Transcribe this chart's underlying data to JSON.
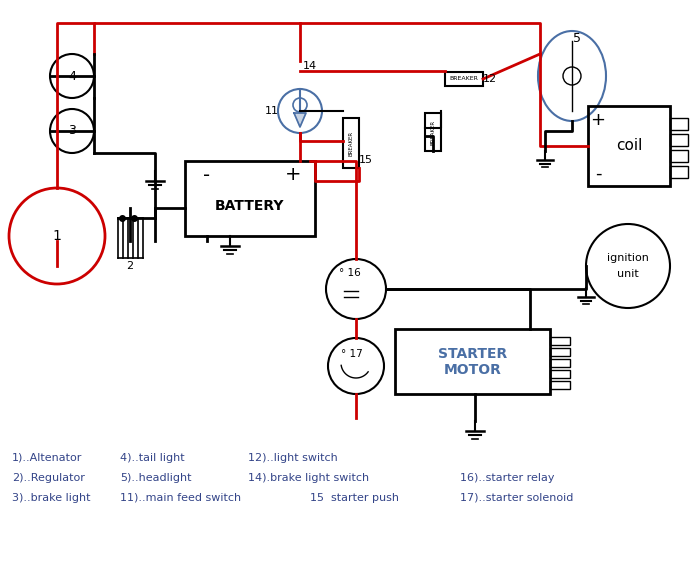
{
  "bg_color": "#ffffff",
  "red": "#cc0000",
  "black": "#000000",
  "blue": "#4a6fa5",
  "dark_blue": "#334488",
  "legend_lines": [
    [
      "1)..Altenator",
      "4)..tail light",
      "12)..light switch",
      "",
      ""
    ],
    [
      "2)..Regulator",
      "5)..headlight",
      "14).brake light switch",
      "16)..starter relay",
      ""
    ],
    [
      "3)..brake light",
      "11)..main feed switch",
      "15  starter push",
      "17)..starter solenoid",
      ""
    ]
  ]
}
